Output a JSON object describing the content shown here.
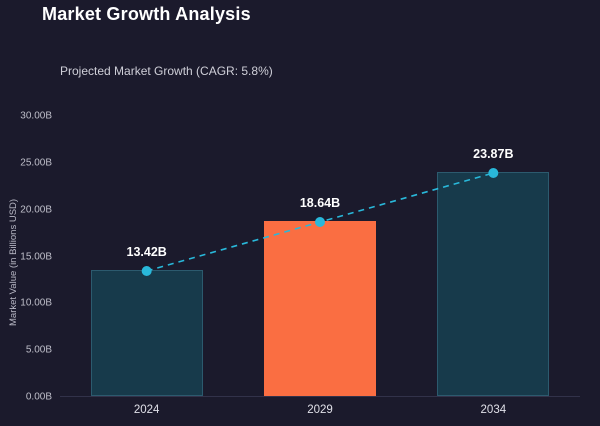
{
  "title": "Market Growth Analysis",
  "subtitle": "Projected Market Growth (CAGR: 5.8%)",
  "colors": {
    "background": "#1b1a2c",
    "bar_teal": "#173a4b",
    "bar_teal_border": "#2c5a6e",
    "bar_orange": "#fa6e42",
    "trend_cyan": "#29b8da",
    "title_text": "#ffffff",
    "muted_text": "#bfbfca"
  },
  "chart_data": {
    "type": "bar",
    "title": "Market Growth Analysis",
    "subtitle": "Projected Market Growth (CAGR: 5.8%)",
    "categories": [
      "2024",
      "2029",
      "2034"
    ],
    "values": [
      13.42,
      18.64,
      23.87
    ],
    "value_labels": [
      "13.42B",
      "18.64B",
      "23.87B"
    ],
    "series": [
      {
        "name": "Market Value",
        "type": "bar",
        "values": [
          13.42,
          18.64,
          23.87
        ]
      },
      {
        "name": "Trend",
        "type": "line-dashed",
        "values": [
          13.42,
          18.64,
          23.87
        ]
      }
    ],
    "xlabel": "",
    "ylabel": "Market Value (in Billions USD)",
    "ylim": [
      0,
      30
    ],
    "yticks": [
      "0.00B",
      "5.00B",
      "10.00B",
      "15.00B",
      "20.00B",
      "25.00B",
      "30.00B"
    ],
    "grid": false,
    "legend": "none",
    "bar_colors": [
      "#173a4b",
      "#fa6e42",
      "#173a4b"
    ],
    "bar_border_colors": [
      "#2c5a6e",
      "#fa6e42",
      "#2c5a6e"
    ],
    "line_color": "#29b8da",
    "cagr": "5.8%"
  }
}
